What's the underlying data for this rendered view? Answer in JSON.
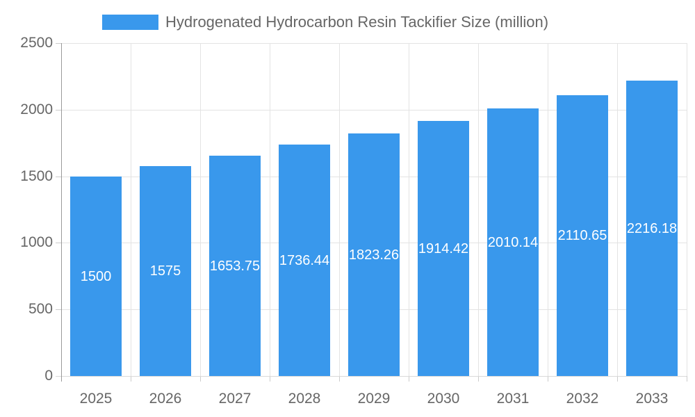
{
  "legend": {
    "label": "Hydrogenated Hydrocarbon Resin Tackifier Size (million)"
  },
  "colors": {
    "bar": "#3998EC",
    "legend_text": "#666666",
    "axis_text": "#666666",
    "grid_line": "#E3E3E3",
    "tick_line": "#CCCCCC",
    "axis_line": "#999999",
    "baseline": "#D9D9D9",
    "bar_label_text": "#FFFFFF",
    "background": "#FFFFFF"
  },
  "chart_data": {
    "type": "bar",
    "title": "",
    "series_name": "Hydrogenated Hydrocarbon Resin Tackifier Size (million)",
    "categories": [
      "2025",
      "2026",
      "2027",
      "2028",
      "2029",
      "2030",
      "2031",
      "2032",
      "2033"
    ],
    "values": [
      1500,
      1575,
      1653.75,
      1736.44,
      1823.26,
      1914.42,
      2010.14,
      2110.65,
      2216.18
    ],
    "value_labels": [
      "1500",
      "1575",
      "1653.75",
      "1736.44",
      "1823.26",
      "1914.42",
      "2010.14",
      "2110.65",
      "2216.18"
    ],
    "xlabel": "",
    "ylabel": "",
    "ylim": [
      0,
      2500
    ],
    "yticks": [
      0,
      500,
      1000,
      1500,
      2000,
      2500
    ],
    "grid": true,
    "legend_position": "top-center",
    "bar_label_position": "inside-center"
  }
}
